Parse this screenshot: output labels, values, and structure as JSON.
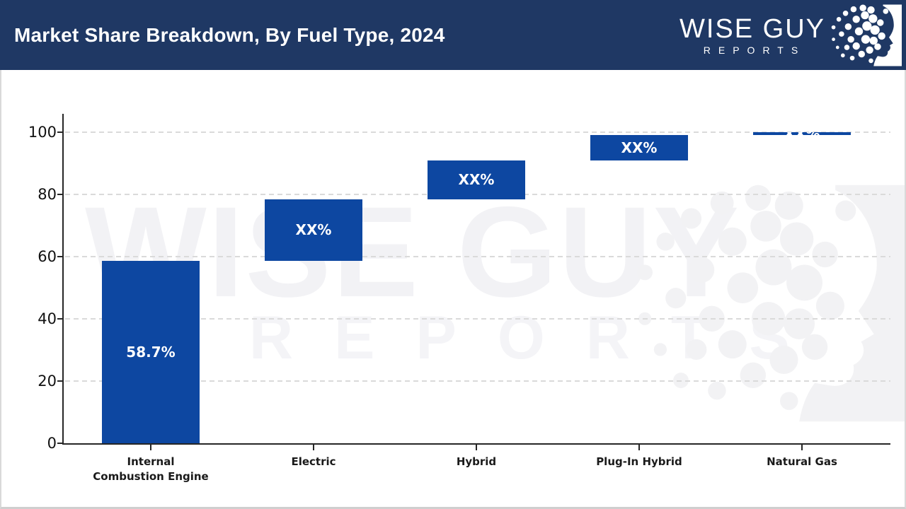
{
  "header": {
    "logo": {
      "line1": "WISE GUY",
      "line2": "REPORTS"
    }
  },
  "watermark": {
    "line1": "WISE GUY",
    "line2": "REPORTS"
  },
  "colors": {
    "header_bg": "#1f3864",
    "bar_blue": "#0d47a1",
    "bar_label_white": "#ffffff",
    "watermark_gray": "#f2f2f5",
    "grid_gray": "#d9d9d9",
    "axis_dark": "#262626"
  },
  "chart_data": {
    "type": "bar",
    "subtype": "waterfall-stacked-share",
    "title": "Market Share Breakdown, By Fuel Type, 2024",
    "categories": [
      "Internal\nCombustion Engine",
      "Electric",
      "Hybrid",
      "Plug-In Hybrid",
      "Natural Gas"
    ],
    "segments": [
      {
        "category": "Internal Combustion Engine",
        "start": 0,
        "end": 58.7,
        "value": 58.7,
        "label": "58.7%"
      },
      {
        "category": "Electric",
        "start": 58.7,
        "end": 78.5,
        "value": 19.8,
        "label": "XX%"
      },
      {
        "category": "Hybrid",
        "start": 78.5,
        "end": 91.0,
        "value": 12.5,
        "label": "XX%"
      },
      {
        "category": "Plug-In Hybrid",
        "start": 91.0,
        "end": 99.0,
        "value": 8.0,
        "label": "XX%"
      },
      {
        "category": "Natural Gas",
        "start": 99.0,
        "end": 100.0,
        "value": 1.0,
        "label": "XX%"
      }
    ],
    "yticks": [
      0,
      20,
      40,
      60,
      80,
      100
    ],
    "ylim": [
      0,
      105
    ],
    "xlabel": "",
    "ylabel": "",
    "grid": "horizontal-dashed",
    "legend": "none",
    "bar_color": "#0d47a1",
    "bar_label_color": "#ffffff"
  }
}
